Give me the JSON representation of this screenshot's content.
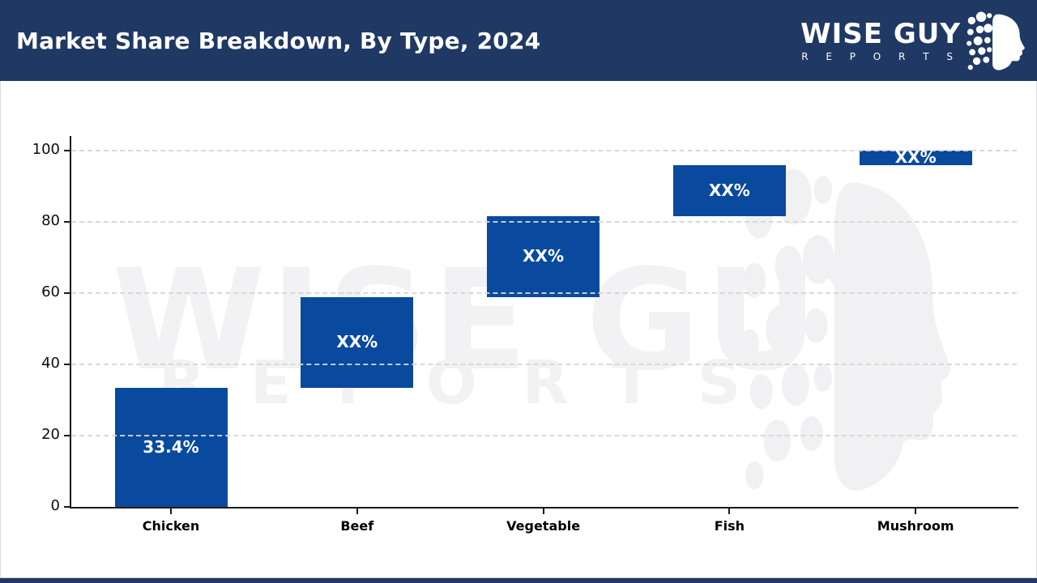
{
  "header": {
    "title": "Market Share Breakdown, By Type, 2024",
    "logo": {
      "line1": "WISE GUY",
      "line2": "R E P O R T S"
    }
  },
  "watermark": {
    "line1": "WISE GUY",
    "line2": "REPORTS"
  },
  "colors": {
    "header_bg": "#203864",
    "bar": "#0a4a9e",
    "grid": "#d6d6d6",
    "axis": "#1a1a1a",
    "bar_label_text": "#ffffff",
    "watermark": "#f2f2f4",
    "footer_bar": "#203864"
  },
  "chart_data": {
    "type": "bar",
    "variant": "waterfall",
    "title": "Market Share Breakdown, By Type, 2024",
    "categories": [
      "Chicken",
      "Beef",
      "Vegetable",
      "Fish",
      "Mushroom"
    ],
    "segments": [
      {
        "category": "Chicken",
        "start": 0,
        "end": 33.4,
        "label": "33.4%"
      },
      {
        "category": "Beef",
        "start": 33.4,
        "end": 58.9,
        "label": "XX%"
      },
      {
        "category": "Vegetable",
        "start": 58.9,
        "end": 81.5,
        "label": "XX%"
      },
      {
        "category": "Fish",
        "start": 81.5,
        "end": 96.0,
        "label": "XX%"
      },
      {
        "category": "Mushroom",
        "start": 96.0,
        "end": 100.0,
        "label": "XX%"
      }
    ],
    "ylim": [
      0,
      100
    ],
    "yticks": [
      0,
      20,
      40,
      60,
      80,
      100
    ],
    "xlabel": "",
    "ylabel": "",
    "grid": {
      "axis": "y",
      "style": "dashed"
    },
    "legend_position": "none"
  }
}
